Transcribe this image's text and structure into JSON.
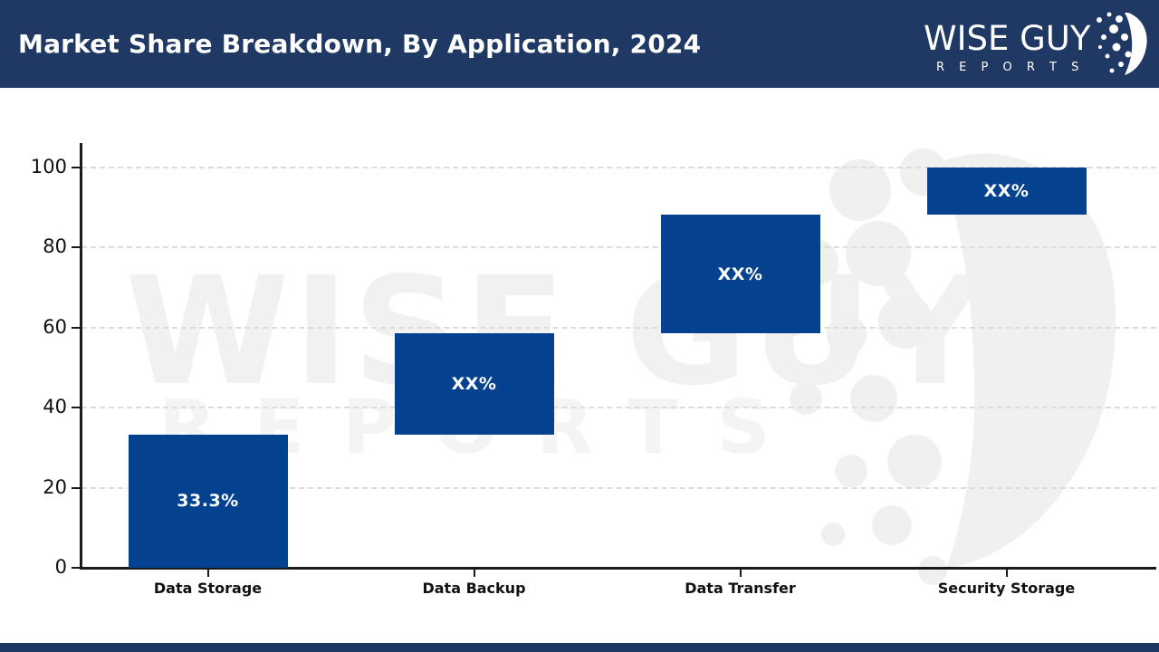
{
  "header": {
    "title": "Market Share Breakdown, By Application, 2024",
    "logo": {
      "line1": "WISE GUY",
      "line2": "R E P O R T S"
    }
  },
  "watermark": {
    "line1": "WISE GUY",
    "line2": "REPORTS"
  },
  "colors": {
    "header_bg": "#1f3864",
    "footer_bg": "#1f3864",
    "bar_fill": "#04428f",
    "bar_label_text": "#ffffff",
    "axis": "#1a1a1a",
    "gridline": "#dcdcdc",
    "watermark": "#f1f1f1"
  },
  "chart_data": {
    "type": "bar",
    "subtype": "waterfall-floating-segments",
    "title": "Market Share Breakdown, By Application, 2024",
    "categories": [
      "Data Storage",
      "Data Backup",
      "Data Transfer",
      "Security Storage"
    ],
    "segments": [
      {
        "category": "Data Storage",
        "start": 0,
        "end": 33.3,
        "label": "33.3%"
      },
      {
        "category": "Data Backup",
        "start": 33.3,
        "end": 58.6,
        "label": "XX%"
      },
      {
        "category": "Data Transfer",
        "start": 58.6,
        "end": 88.1,
        "label": "XX%"
      },
      {
        "category": "Security Storage",
        "start": 88.1,
        "end": 100,
        "label": "XX%"
      }
    ],
    "xlabel": "",
    "ylabel": "",
    "ylim": [
      0,
      106
    ],
    "yticks": [
      0,
      20,
      40,
      60,
      80,
      100
    ],
    "grid": "horizontal-dashed",
    "legend": "none"
  }
}
